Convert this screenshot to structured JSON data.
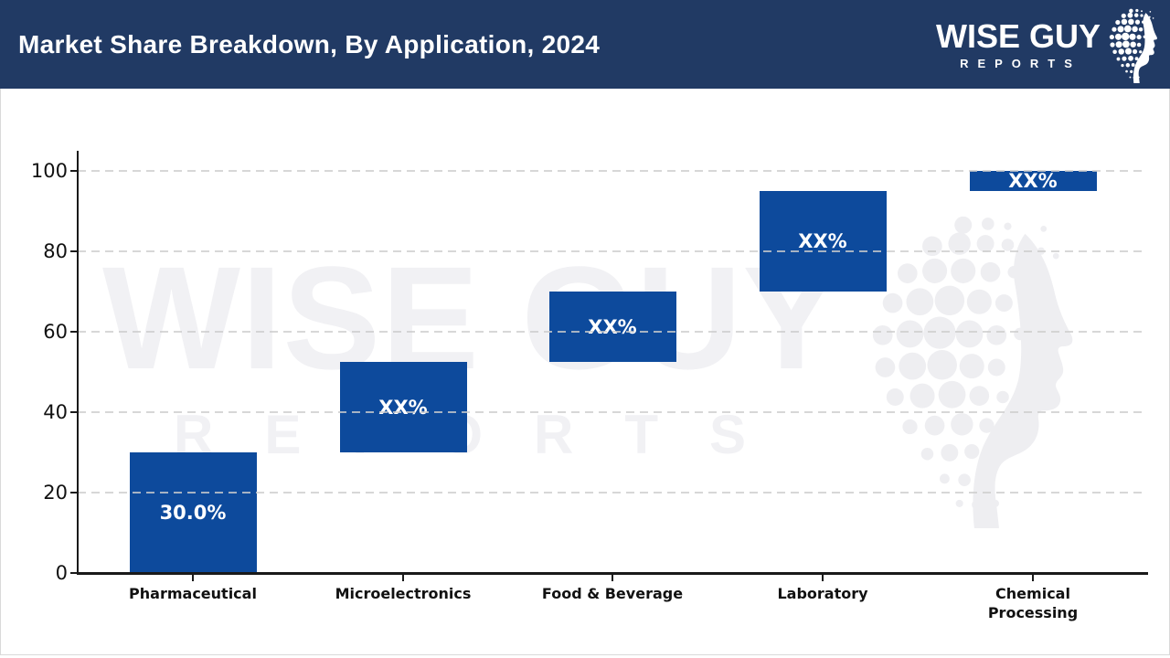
{
  "header": {
    "title": "Market Share Breakdown, By Application, 2024",
    "bg_color": "#213a64",
    "logo": {
      "line1": "WISE GUY",
      "line2": "REPORTS"
    }
  },
  "watermark": {
    "line1": "WISE GUY",
    "line2": "REPORTS"
  },
  "chart_data": {
    "type": "bar",
    "subtype": "waterfall-floating-segments",
    "title": "Market Share Breakdown, By Application, 2024",
    "xlabel": "",
    "ylabel": "",
    "ylim": [
      0,
      105
    ],
    "yticks": [
      0,
      20,
      40,
      60,
      80,
      100
    ],
    "grid": "horizontal dashed, drawn over bars",
    "legend": "none",
    "bar_color": "#0d4a9c",
    "bar_label_color": "#ffffff",
    "categories": [
      "Pharmaceutical",
      "Microelectronics",
      "Food & Beverage",
      "Laboratory",
      "Chemical\nProcessing"
    ],
    "segments": [
      {
        "category": "Pharmaceutical",
        "start": 0,
        "end": 30,
        "value": 30.0,
        "label": "30.0%"
      },
      {
        "category": "Microelectronics",
        "start": 30,
        "end": 52.5,
        "value": 22.5,
        "label": "XX%"
      },
      {
        "category": "Food & Beverage",
        "start": 52.5,
        "end": 70,
        "value": 17.5,
        "label": "XX%"
      },
      {
        "category": "Laboratory",
        "start": 70,
        "end": 95,
        "value": 25.0,
        "label": "XX%"
      },
      {
        "category": "Chemical Processing",
        "start": 95,
        "end": 100,
        "value": 5.0,
        "label": "XX%"
      }
    ]
  }
}
